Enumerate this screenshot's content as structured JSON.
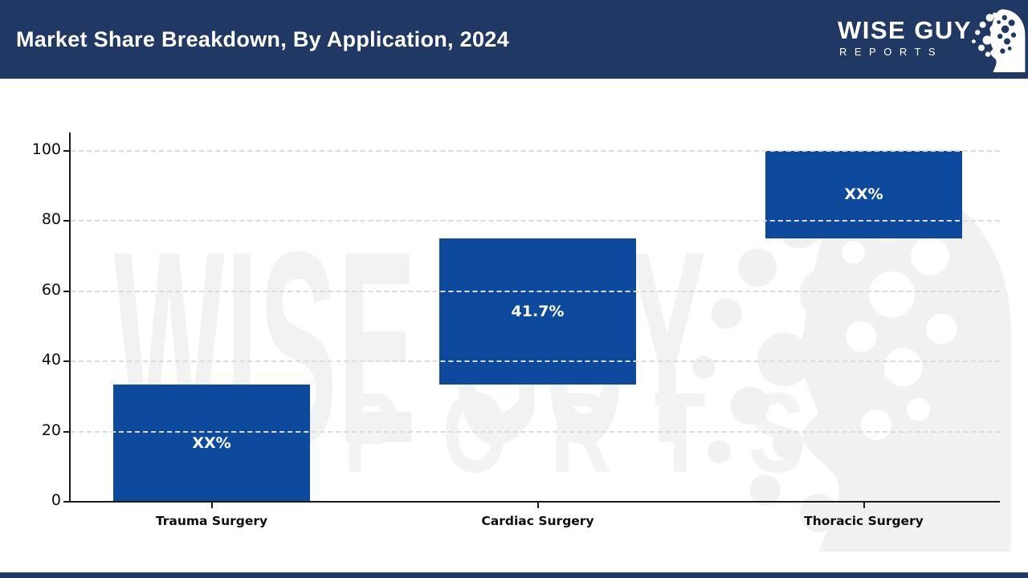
{
  "header": {
    "title": "Market Share Breakdown, By Application, 2024",
    "logo": {
      "brand_line1": "WISE GUY",
      "brand_line2": "REPORTS"
    }
  },
  "watermark": {
    "line1": "WISE GUY",
    "line2": "REPORTS"
  },
  "colors": {
    "header_bg": "#203864",
    "bar": "#0d4a9e",
    "bar_label": "#ffffff",
    "grid": "#dcdcdc",
    "axis": "#1a1a1a"
  },
  "chart_data": {
    "type": "bar",
    "variant": "floating segments (waterfall-style market share breakdown)",
    "title": "Market Share Breakdown, By Application, 2024",
    "categories": [
      "Trauma Surgery",
      "Cardiac Surgery",
      "Thoracic Surgery"
    ],
    "bars": [
      {
        "category": "Trauma Surgery",
        "start": 0,
        "end": 33.3,
        "label": "XX%"
      },
      {
        "category": "Cardiac Surgery",
        "start": 33.3,
        "end": 75,
        "label": "41.7%"
      },
      {
        "category": "Thoracic Surgery",
        "start": 75,
        "end": 100,
        "label": "XX%"
      }
    ],
    "bar_color": "#0d4a9e",
    "xlabel": "",
    "ylabel": "",
    "ylim": [
      0,
      105
    ],
    "yticks": [
      0,
      20,
      40,
      60,
      80,
      100
    ],
    "grid": "horizontal dashed gridlines at each y tick, drawn above bars",
    "legend": "none"
  }
}
